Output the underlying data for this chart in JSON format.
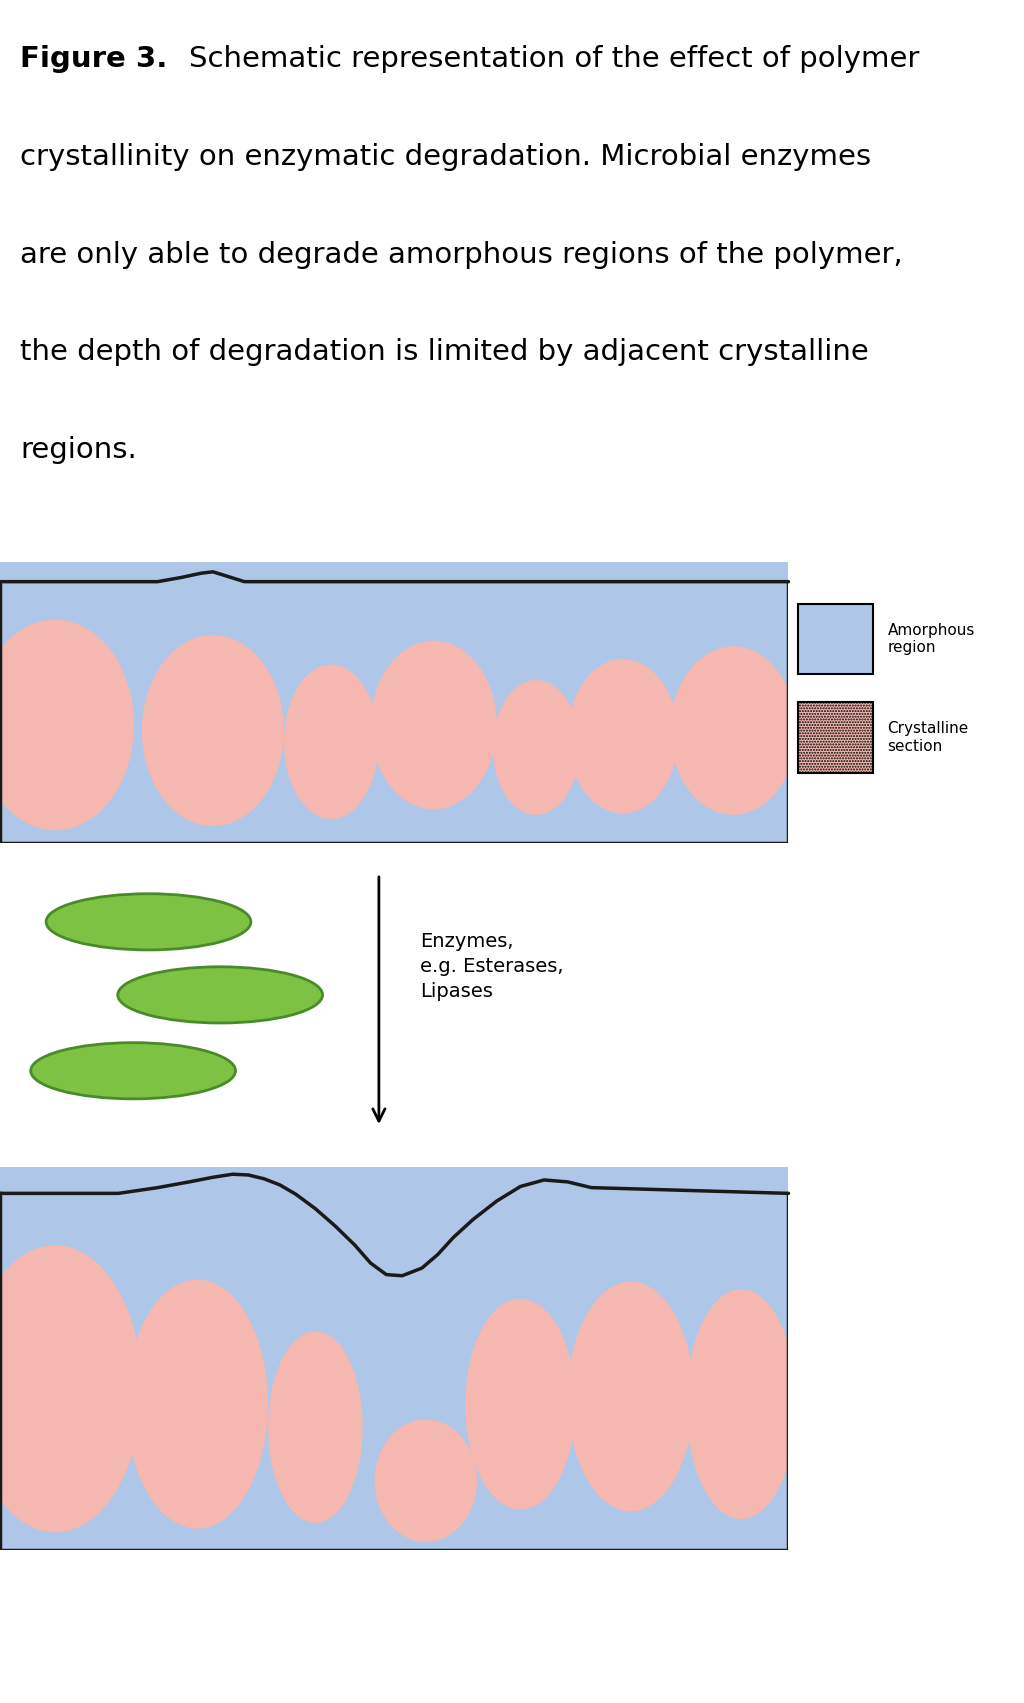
{
  "white": "#ffffff",
  "amorphous_color": "#aec6e8",
  "crystalline_color": "#f4b8b0",
  "outline_color": "#1a1a1a",
  "enzyme_color": "#7dc242",
  "enzyme_edge": "#4a8a2a",
  "text_color": "#1a1a1a",
  "legend_am_label": "Amorphous\nregion",
  "legend_cry_label": "Crystalline\nsection",
  "arrow_label": "Enzymes,\ne.g. Esterases,\nLipases",
  "figsize": [
    10.24,
    17.03
  ],
  "dpi": 100
}
